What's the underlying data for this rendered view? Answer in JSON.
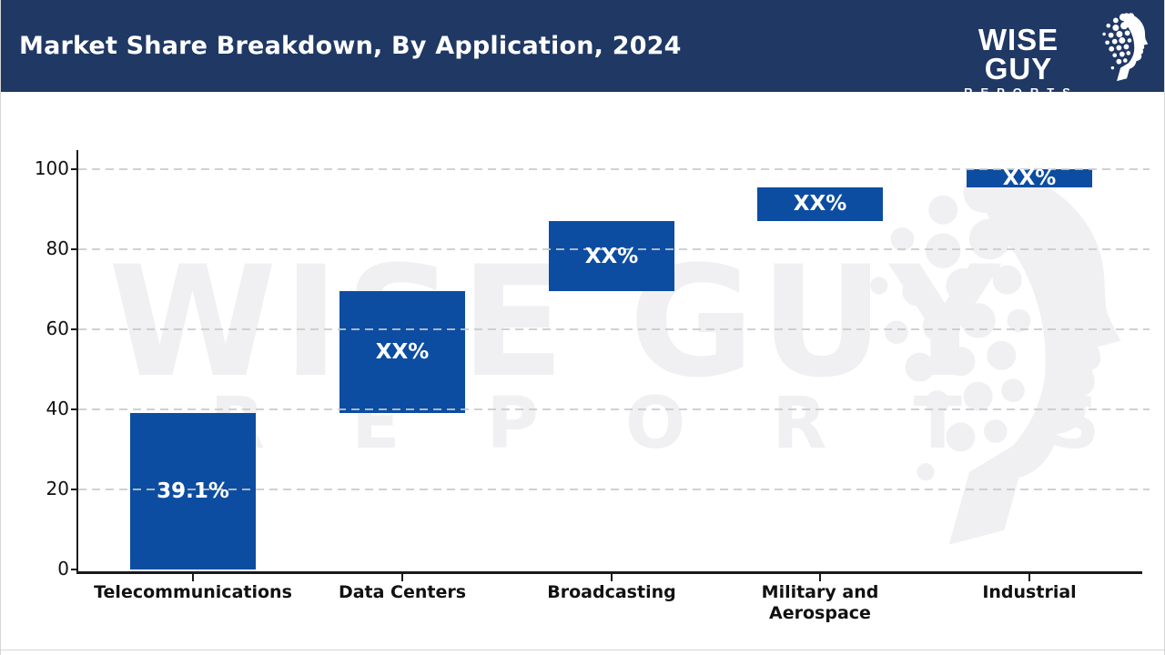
{
  "header": {
    "title": "Market Share Breakdown, By Application, 2024",
    "brand": {
      "line1": "WISE GUY",
      "line2": "REPORTS"
    }
  },
  "watermark": {
    "line1": "WISE GUY",
    "line2": "R E P O R T S"
  },
  "colors": {
    "header_bg": "#1f3864",
    "bar_blue": "#0c4da2",
    "grid_gray": "#c9c9c9",
    "axis_black": "#1a1a1a",
    "watermark_gray": "#f0f0f2",
    "label_white": "#ffffff"
  },
  "chart_data": {
    "type": "bar",
    "subtype": "waterfall",
    "title": "Market Share Breakdown, By Application, 2024",
    "xlabel": "",
    "ylabel": "",
    "ylim": [
      0,
      105
    ],
    "yticks": [
      0,
      20,
      40,
      60,
      80,
      100
    ],
    "grid": "dashed horizontal",
    "legend": "none",
    "categories": [
      "Telecommunications",
      "Data Centers",
      "Broadcasting",
      "Military and Aerospace",
      "Industrial"
    ],
    "bars": [
      {
        "category": "Telecommunications",
        "label": "39.1%",
        "start": 0,
        "end": 39.1
      },
      {
        "category": "Data Centers",
        "label": "XX%",
        "start": 39.1,
        "end": 69.5
      },
      {
        "category": "Broadcasting",
        "label": "XX%",
        "start": 69.5,
        "end": 87.0
      },
      {
        "category": "Military and Aerospace",
        "label": "XX%",
        "start": 87.0,
        "end": 95.5
      },
      {
        "category": "Industrial",
        "label": "XX%",
        "start": 95.5,
        "end": 100.0
      }
    ]
  }
}
